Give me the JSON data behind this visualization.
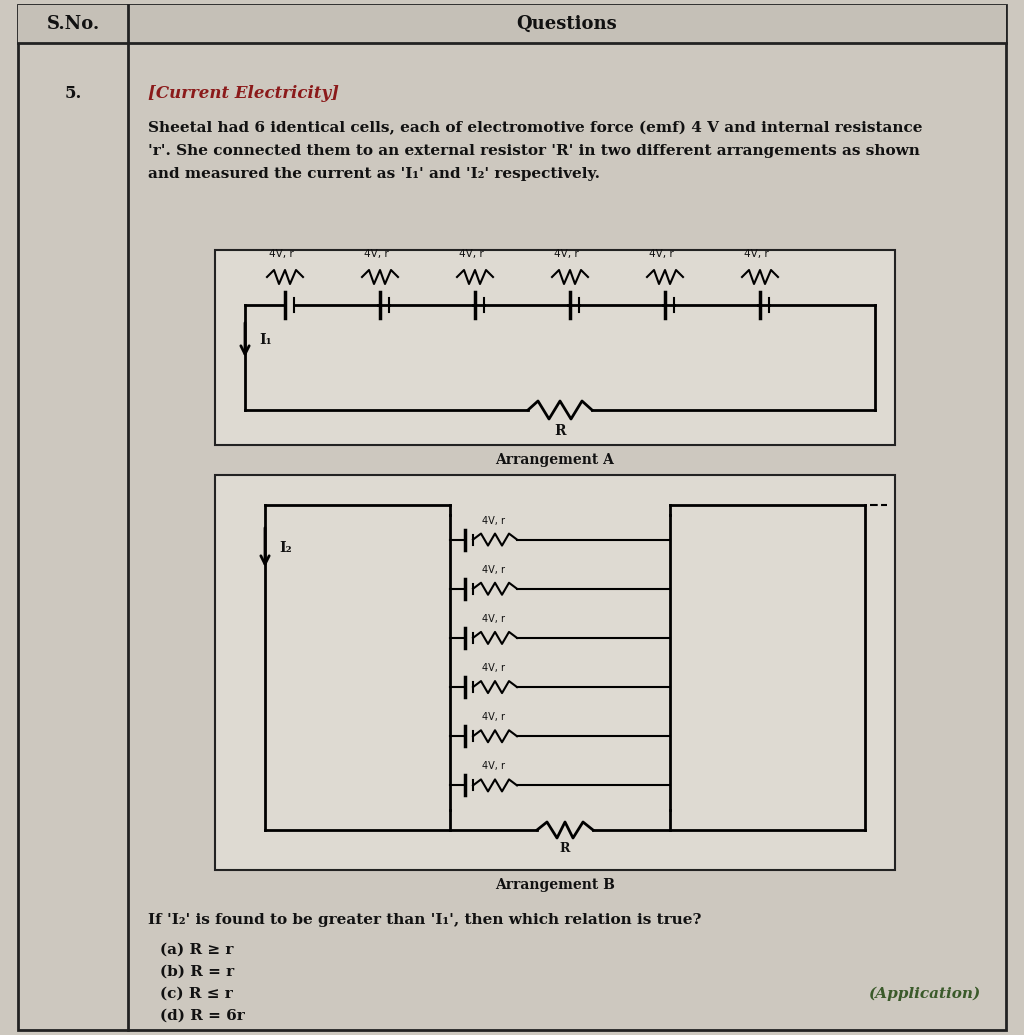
{
  "bg_color": "#cdc8bf",
  "header_bg": "#c5c0b7",
  "box_bg": "#dedad2",
  "border_color": "#222222",
  "text_color": "#111111",
  "red_color": "#8b1a1a",
  "green_color": "#3a5a2a",
  "sno_header": "S.No.",
  "q_header": "Questions",
  "sno": "5.",
  "topic": "[Current Electricity]",
  "q_line1": "Sheetal had 6 identical cells, each of electromotive force (emf) 4 V and internal resistance",
  "q_line2": "'r'. She connected them to an external resistor 'R' in two different arrangements as shown",
  "q_line3": "and measured the current as 'I₁' and 'I₂' respectively.",
  "arrangement_a_label": "Arrangement A",
  "arrangement_b_label": "Arrangement B",
  "question2": "If 'I₂' is found to be greater than 'I₁', then which relation is true?",
  "opt_a": "(a) R ≥ r",
  "opt_b": "(b) R = r",
  "opt_c": "(c) R ≤ r",
  "opt_d": "(d) R = 6r",
  "application_label": "(Application)",
  "cell_label": "4V, r",
  "R_label": "R",
  "I1_label": "I₁",
  "I2_label": "I₂"
}
